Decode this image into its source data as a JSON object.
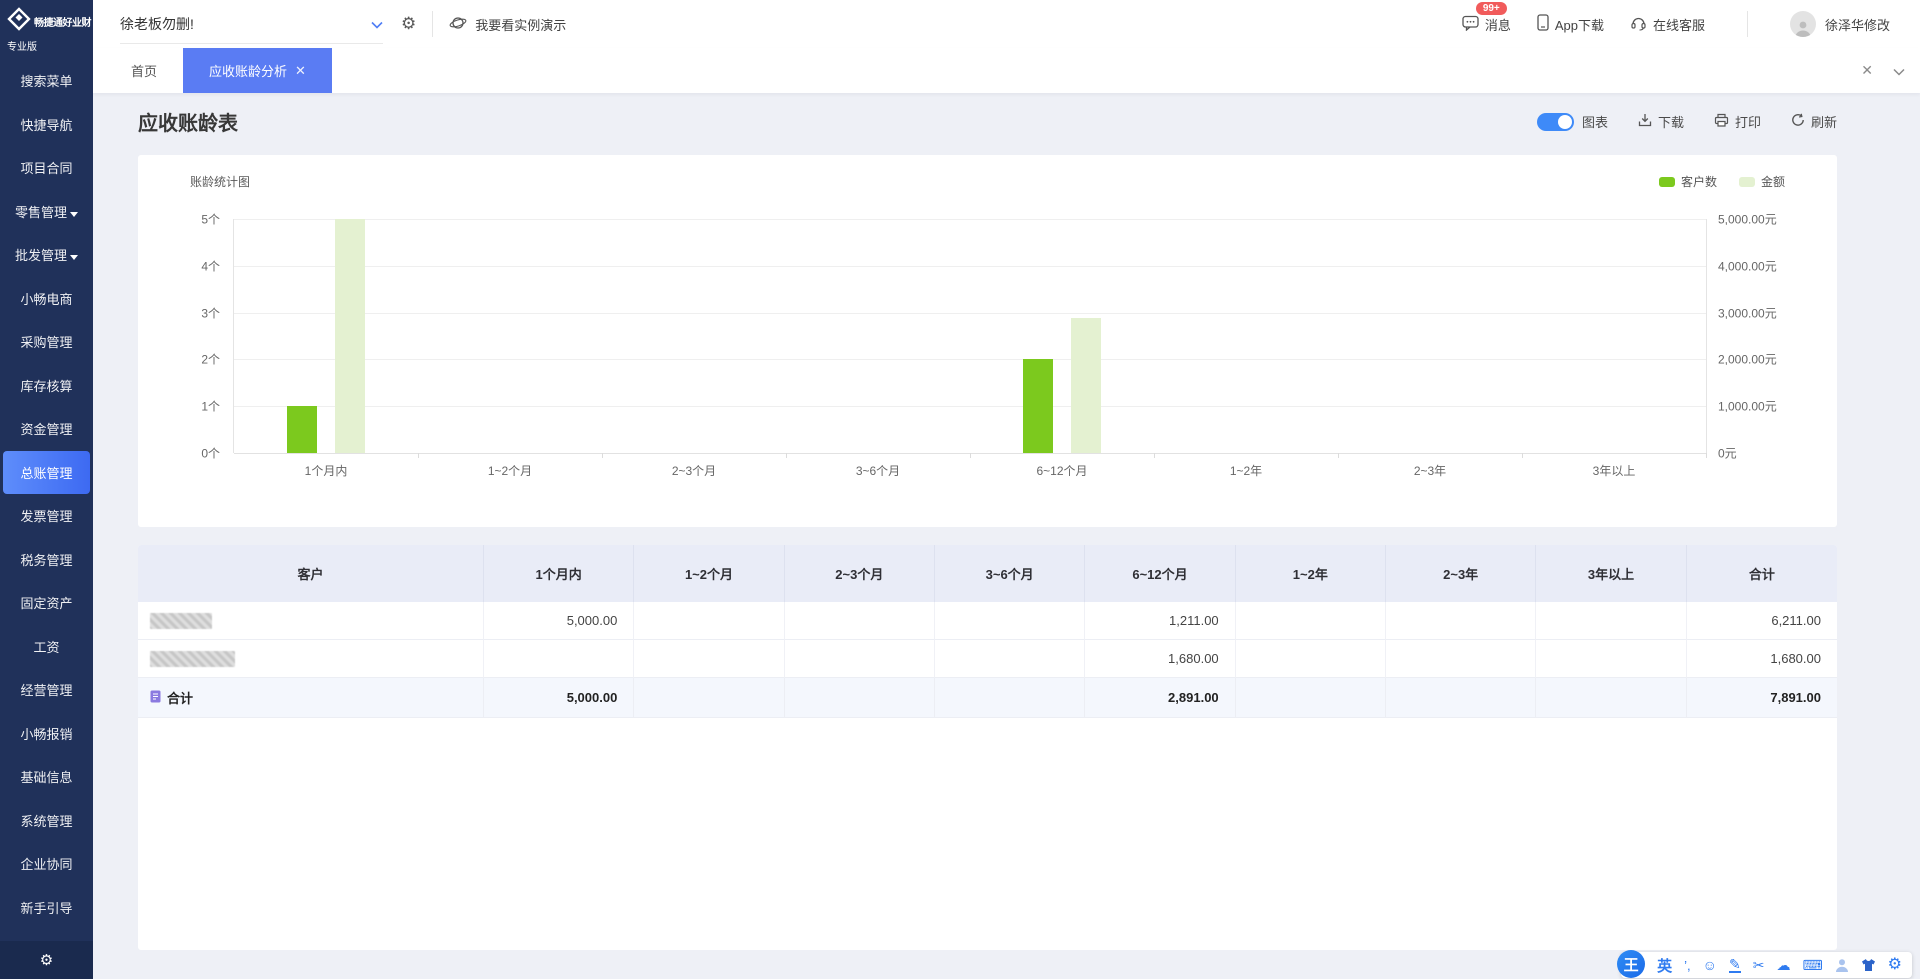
{
  "brand": {
    "name": "畅捷通好业财",
    "edition": "专业版"
  },
  "topbar": {
    "org_selector": "徐老板勿删!",
    "demo_link": "我要看实例演示",
    "messages_label": "消息",
    "messages_badge": "99+",
    "app_download_label": "App下载",
    "support_label": "在线客服",
    "username": "徐泽华修改"
  },
  "tabs": [
    {
      "label": "首页",
      "active": false,
      "closable": false
    },
    {
      "label": "应收账龄分析",
      "active": true,
      "closable": true
    }
  ],
  "sidebar": {
    "items": [
      {
        "label": "搜索菜单"
      },
      {
        "label": "快捷导航"
      },
      {
        "label": "项目合同"
      },
      {
        "label": "零售管理",
        "caret": true
      },
      {
        "label": "批发管理",
        "caret": true
      },
      {
        "label": "小畅电商"
      },
      {
        "label": "采购管理"
      },
      {
        "label": "库存核算"
      },
      {
        "label": "资金管理"
      },
      {
        "label": "总账管理",
        "active": true
      },
      {
        "label": "发票管理"
      },
      {
        "label": "税务管理"
      },
      {
        "label": "固定资产"
      },
      {
        "label": "工资"
      },
      {
        "label": "经营管理"
      },
      {
        "label": "小畅报销"
      },
      {
        "label": "基础信息"
      },
      {
        "label": "系统管理"
      },
      {
        "label": "企业协同"
      },
      {
        "label": "新手引导"
      }
    ]
  },
  "page": {
    "title": "应收账龄表",
    "toolbar": {
      "chart_toggle_label": "图表",
      "download_label": "下载",
      "print_label": "打印",
      "refresh_label": "刷新"
    }
  },
  "chart_data": {
    "type": "bar",
    "title": "账龄统计图",
    "categories": [
      "1个月内",
      "1~2个月",
      "2~3个月",
      "3~6个月",
      "6~12个月",
      "1~2年",
      "2~3年",
      "3年以上"
    ],
    "series": [
      {
        "name": "客户数",
        "axis": "left",
        "color": "#7cc91e",
        "values": [
          1,
          0,
          0,
          0,
          2,
          0,
          0,
          0
        ]
      },
      {
        "name": "金额",
        "axis": "right",
        "color": "#e4f1d1",
        "values": [
          5000,
          0,
          0,
          0,
          2891,
          0,
          0,
          0
        ]
      }
    ],
    "left_axis_max": 5,
    "left_axis_labels": [
      "5个",
      "4个",
      "3个",
      "2个",
      "1个",
      "0个"
    ],
    "right_axis_max": 5000,
    "right_axis_labels": [
      "5,000.00元",
      "4,000.00元",
      "3,000.00元",
      "2,000.00元",
      "1,000.00元",
      "0元"
    ],
    "legend_position": "top-right",
    "grid": true
  },
  "table": {
    "columns": [
      "客户",
      "1个月内",
      "1~2个月",
      "2~3个月",
      "3~6个月",
      "6~12个月",
      "1~2年",
      "2~3年",
      "3年以上",
      "合计"
    ],
    "rows": [
      {
        "customer_masked": true,
        "values": [
          "5,000.00",
          "",
          "",
          "",
          "1,211.00",
          "",
          "",
          "",
          "6,211.00"
        ]
      },
      {
        "customer_masked": true,
        "values": [
          "",
          "",
          "",
          "",
          "1,680.00",
          "",
          "",
          "",
          "1,680.00"
        ]
      }
    ],
    "total_row": {
      "label": "合计",
      "values": [
        "5,000.00",
        "",
        "",
        "",
        "2,891.00",
        "",
        "",
        "",
        "7,891.00"
      ]
    }
  },
  "ime": {
    "badge": "王",
    "mode": "英"
  }
}
